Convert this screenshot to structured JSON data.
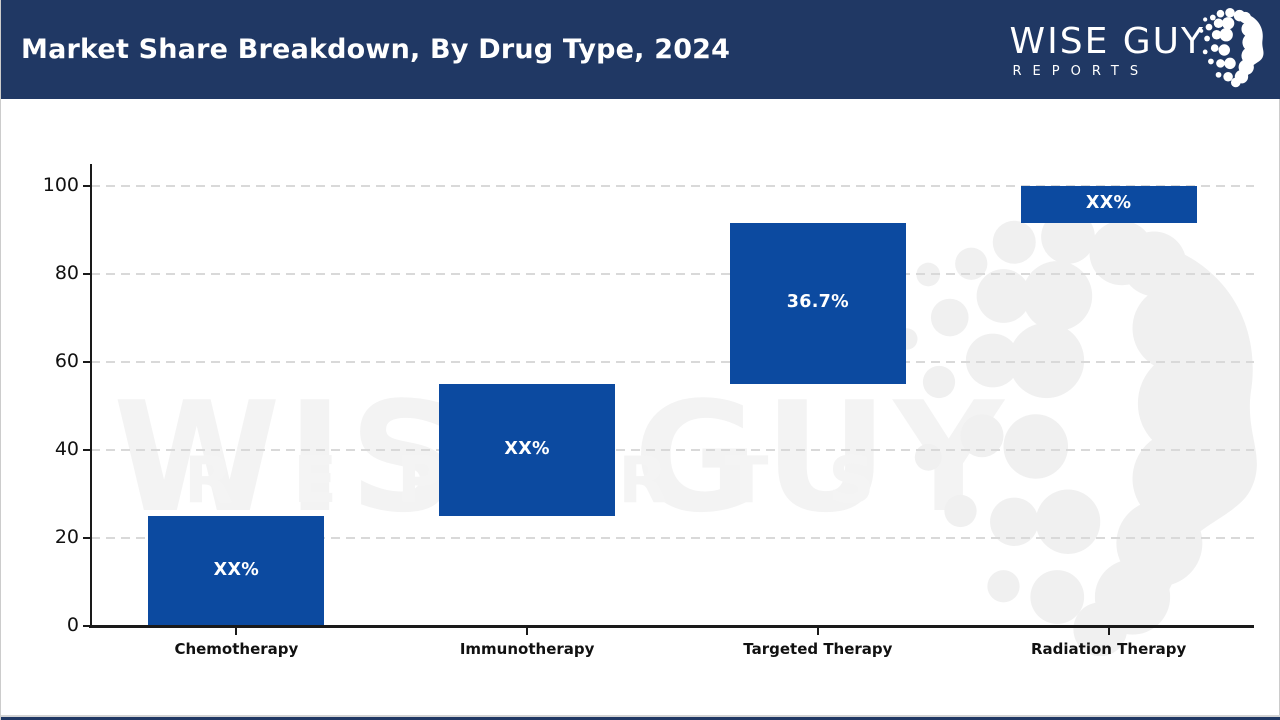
{
  "header": {
    "title": "Market Share Breakdown, By Drug Type, 2024",
    "logo": {
      "line1": "WISE GUY",
      "line2": "REPORTS"
    }
  },
  "watermark": {
    "line1": "WISE GUY",
    "line2": "REPORTS"
  },
  "colors": {
    "header_bg": "#203864",
    "bar_fill": "#0c4aa0",
    "bar_label_text": "#ffffff",
    "grid_line": "#d9d9d9",
    "axis_line": "#1a1a1a",
    "tick_label_text": "#111111",
    "watermark": "#f3f3f3",
    "footer_bar": "#203864",
    "page_border": "#cccccc"
  },
  "chart_data": {
    "type": "bar",
    "subtype": "waterfall",
    "title": "Market Share Breakdown, By Drug Type, 2024",
    "categories": [
      "Chemotherapy",
      "Immunotherapy",
      "Targeted Therapy",
      "Radiation Therapy"
    ],
    "segments": [
      {
        "category": "Chemotherapy",
        "start": 0,
        "end": 25,
        "value_label": "XX%"
      },
      {
        "category": "Immunotherapy",
        "start": 25,
        "end": 55,
        "value_label": "XX%"
      },
      {
        "category": "Targeted Therapy",
        "start": 55,
        "end": 91.7,
        "value_label": "36.7%"
      },
      {
        "category": "Radiation Therapy",
        "start": 91.7,
        "end": 100,
        "value_label": "XX%"
      }
    ],
    "yticks": [
      0,
      20,
      40,
      60,
      80,
      100
    ],
    "ylim": [
      0,
      105
    ],
    "xlabel": "",
    "ylabel": "",
    "grid": "horizontal-dashed",
    "legend": "none"
  }
}
